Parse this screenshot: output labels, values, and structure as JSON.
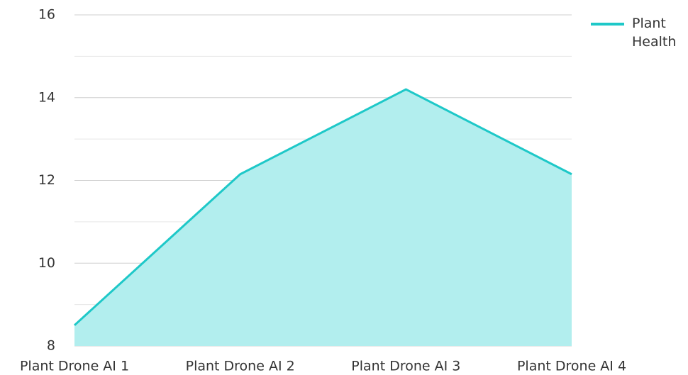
{
  "chart_data": {
    "type": "area",
    "categories": [
      "Plant Drone AI 1",
      "Plant Drone AI 2",
      "Plant Drone AI 3",
      "Plant Drone AI 4"
    ],
    "series": [
      {
        "name": "Plant Health",
        "color": "#1ec8c8",
        "fill": "#b2eeee",
        "values": [
          8.5,
          12.15,
          14.2,
          12.15
        ]
      }
    ],
    "ylim": [
      8,
      16
    ],
    "yticks": [
      8,
      10,
      12,
      14,
      16
    ],
    "minor_yticks": [
      9,
      11,
      13,
      15
    ],
    "grid": true,
    "legend": "top-right"
  }
}
